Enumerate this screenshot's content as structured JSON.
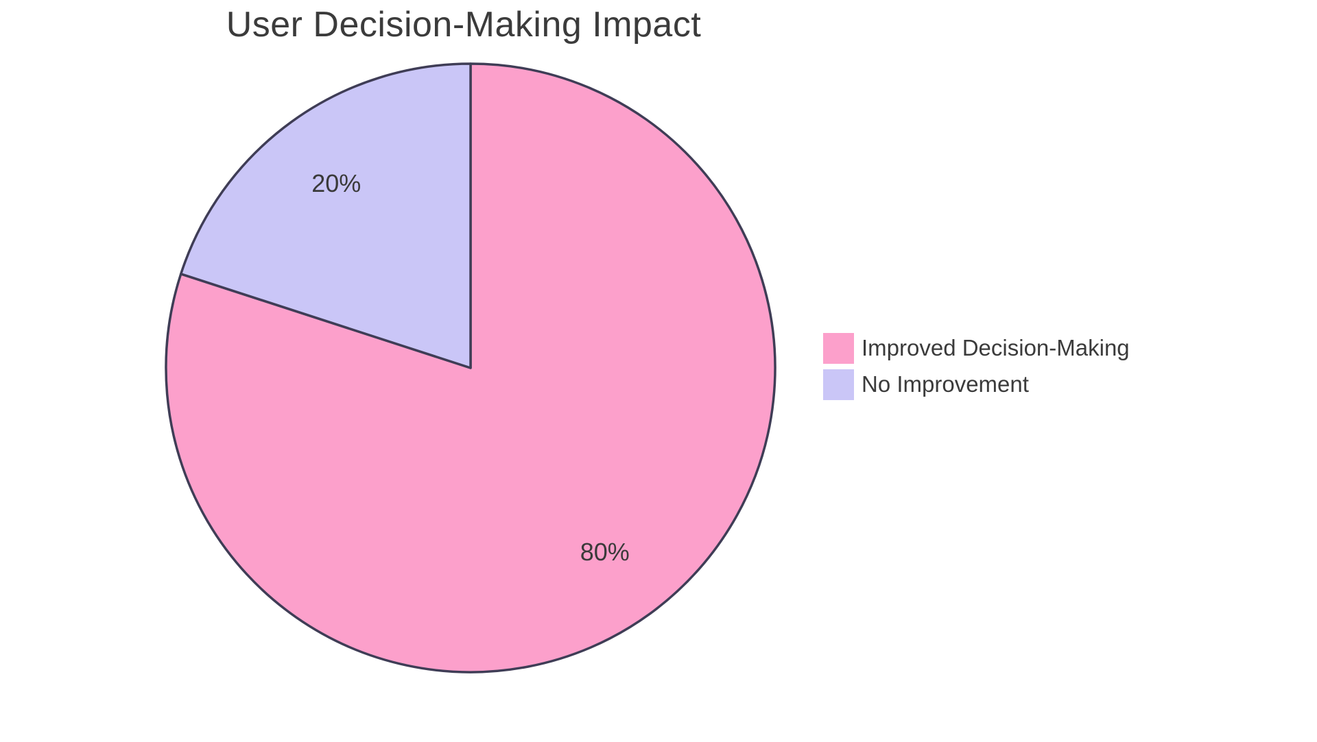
{
  "chart_data": {
    "type": "pie",
    "title": "User Decision-Making Impact",
    "labels": [
      "Improved Decision-Making",
      "No Improvement"
    ],
    "values": [
      80,
      20
    ],
    "slice_text": [
      "80%",
      "20%"
    ],
    "colors": [
      "#FCA0CB",
      "#CAC6F7"
    ],
    "border_color": "#3F3D56",
    "border_width": 3.5,
    "start_angle_deg": 0,
    "direction": "clockwise",
    "legend_position": "right",
    "background": "#FFFFFF",
    "title_color": "#3B3B3B",
    "label_color": "#3A3A3A"
  }
}
